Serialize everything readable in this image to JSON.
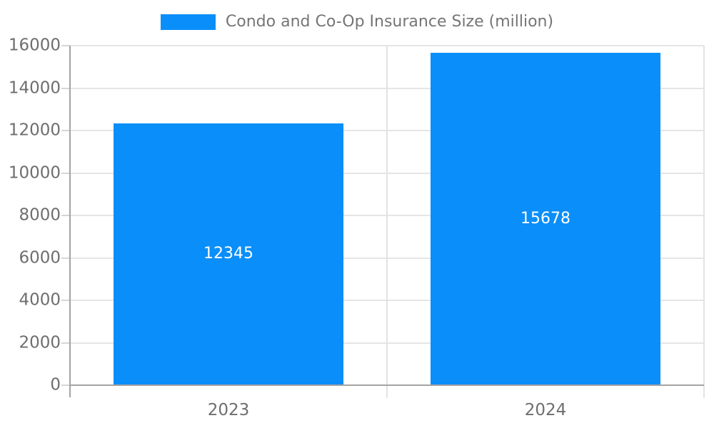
{
  "chart_data": {
    "type": "bar",
    "title": "",
    "legend": "Condo and Co-Op Insurance Size (million)",
    "categories": [
      "2023",
      "2024"
    ],
    "values": [
      12345,
      15678
    ],
    "series": [
      {
        "name": "Condo and Co-Op Insurance Size (million)",
        "values": [
          12345,
          15678
        ]
      }
    ],
    "xlabel": "",
    "ylabel": "",
    "ylim": [
      0,
      16000
    ],
    "yticks": [
      0,
      2000,
      4000,
      6000,
      8000,
      10000,
      12000,
      14000,
      16000
    ],
    "grid": true,
    "legend_position": "top-center",
    "value_labels_inside_bars": true,
    "colors": {
      "bar": "#0a8ef9",
      "grid": "#e5e5e5",
      "axis": "#a3a3a3",
      "tick": "#d6d6d6",
      "divider": "#e3e3e3",
      "axis_text": "#6e6e6e",
      "legend_text": "#757575",
      "value_text": "#ffffff"
    }
  }
}
